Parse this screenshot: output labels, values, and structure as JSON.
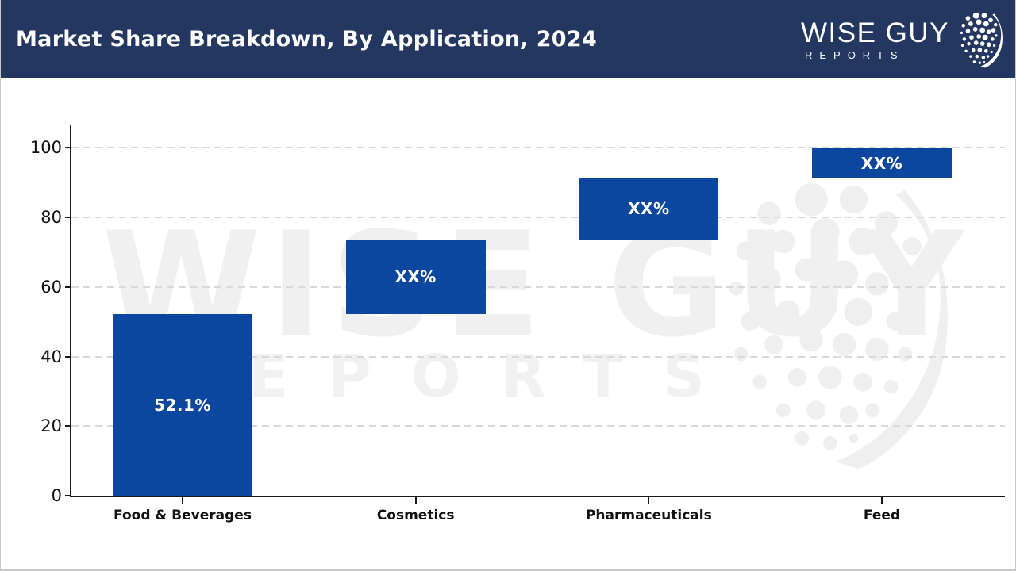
{
  "header": {
    "title": "Market Share Breakdown, By Application, 2024",
    "logo": {
      "line1": "WISE GUY",
      "line2": "REPORTS"
    }
  },
  "watermark": {
    "line1": "WISE GUY",
    "line2": "REPORTS"
  },
  "colors": {
    "header_bg": "#233760",
    "bar": "#0B479E",
    "grid": "#D9D9D9",
    "axis": "#1A1A1A",
    "value_label": "#FFFFFF",
    "watermark": "#F0F0F0",
    "frame_border": "#C9C9C9"
  },
  "chart_data": {
    "type": "bar",
    "subtype": "floating-waterfall",
    "title": "Market Share Breakdown, By Application, 2024",
    "categories": [
      "Food & Beverages",
      "Cosmetics",
      "Pharmaceuticals",
      "Feed"
    ],
    "series": [
      {
        "name": "Market share (%)",
        "segments": [
          {
            "category": "Food & Beverages",
            "start": 0,
            "end": 52.1,
            "label": "52.1%"
          },
          {
            "category": "Cosmetics",
            "start": 52.1,
            "end": 73.7,
            "label": "XX%"
          },
          {
            "category": "Pharmaceuticals",
            "start": 73.7,
            "end": 91.1,
            "label": "XX%"
          },
          {
            "category": "Feed",
            "start": 91.1,
            "end": 100,
            "label": "XX%"
          }
        ]
      }
    ],
    "xlabel": "",
    "ylabel": "",
    "yticks": [
      0,
      20,
      40,
      60,
      80,
      100
    ],
    "ylim": [
      0,
      106
    ],
    "grid": "horizontal-dashed",
    "legend": "none"
  }
}
